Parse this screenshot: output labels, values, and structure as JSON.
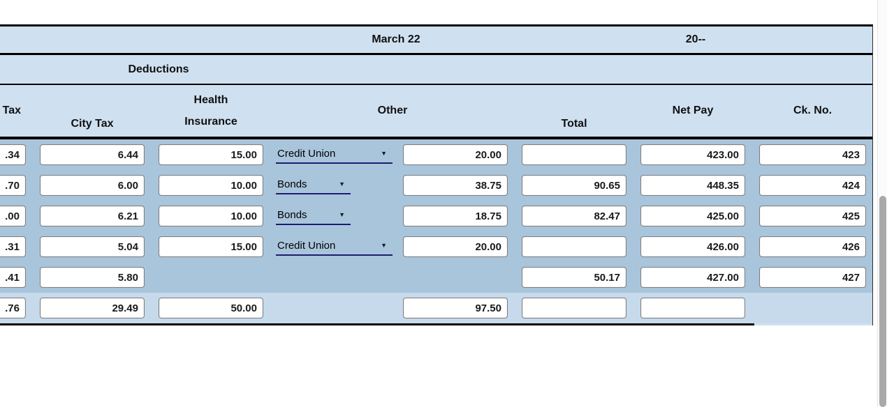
{
  "payroll_register": {
    "date": "March 22",
    "year": "20--",
    "section_label": "Deductions",
    "columns": {
      "tax": "Tax",
      "city_tax": "City Tax",
      "health_line1": "Health",
      "health_line2": "Insurance",
      "other": "Other",
      "total": "Total",
      "net_pay": "Net Pay",
      "ck_no": "Ck. No."
    },
    "rows": [
      {
        "tax": ".34",
        "city_tax": "6.44",
        "health_insurance": "15.00",
        "other_option": "Credit Union",
        "other_amount": "20.00",
        "total": "",
        "net_pay": "423.00",
        "ck_no": "423"
      },
      {
        "tax": ".70",
        "city_tax": "6.00",
        "health_insurance": "10.00",
        "other_option": "Bonds",
        "other_amount": "38.75",
        "total": "90.65",
        "net_pay": "448.35",
        "ck_no": "424"
      },
      {
        "tax": ".00",
        "city_tax": "6.21",
        "health_insurance": "10.00",
        "other_option": "Bonds",
        "other_amount": "18.75",
        "total": "82.47",
        "net_pay": "425.00",
        "ck_no": "425"
      },
      {
        "tax": ".31",
        "city_tax": "5.04",
        "health_insurance": "15.00",
        "other_option": "Credit Union",
        "other_amount": "20.00",
        "total": "",
        "net_pay": "426.00",
        "ck_no": "426"
      },
      {
        "tax": ".41",
        "city_tax": "5.80",
        "total": "50.17",
        "net_pay": "427.00",
        "ck_no": "427"
      },
      {
        "tax": ".76",
        "city_tax": "29.49",
        "health_insurance": "50.00",
        "other_amount": "97.50",
        "total": "",
        "net_pay": ""
      }
    ]
  },
  "icons": {
    "dropdown_arrow": "▼"
  },
  "colors": {
    "header_bg": "#cfe0f0",
    "data_bg": "#a9c5dc",
    "totals_bg": "#c6daeb",
    "border": "#000000",
    "input_border": "#7e7e7e",
    "combo_underline": "#1c1c6e"
  }
}
